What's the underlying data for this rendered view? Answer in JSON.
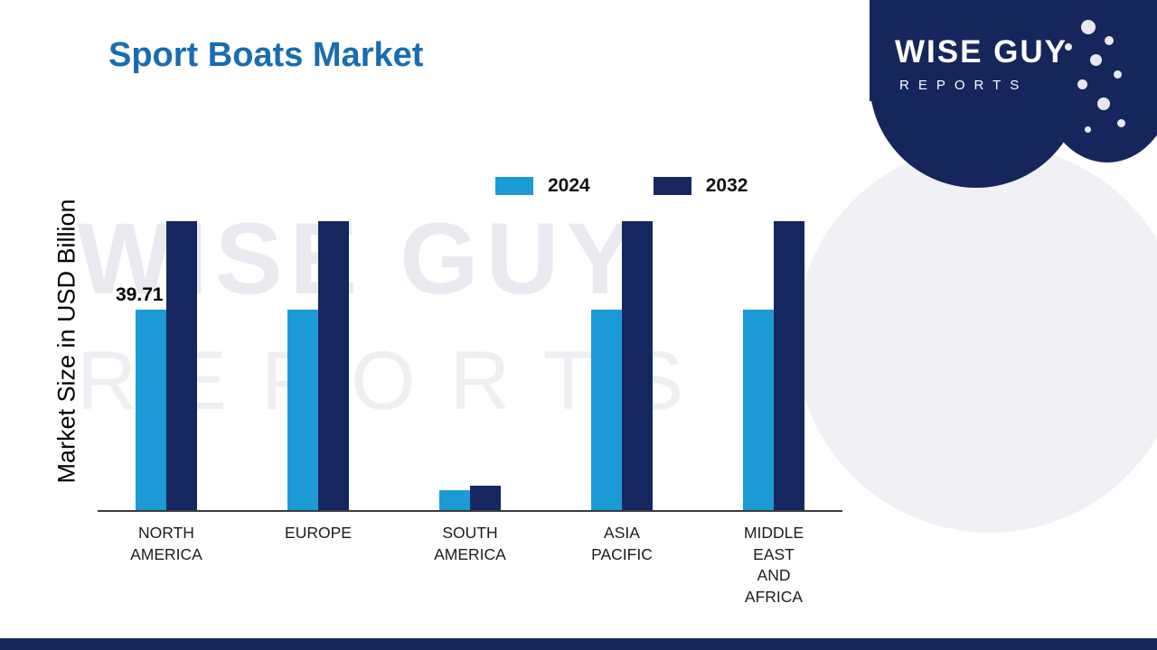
{
  "page": {
    "title": "Sport Boats Market"
  },
  "logo": {
    "line1": "WISE GUY",
    "line2": "REPORTS",
    "bg_color": "#14265b"
  },
  "watermark": {
    "line1": "WISE GUY",
    "line2": "REPORTS"
  },
  "colors": {
    "accent_2024": "#1c9ad6",
    "accent_2032": "#15275e",
    "title": "#1a6cb0",
    "footer": "#14265b"
  },
  "chart_data": {
    "type": "bar",
    "title": "Sport Boats Market",
    "xlabel": "",
    "ylabel": "Market Size in USD Billion",
    "ylim": [
      0,
      60
    ],
    "grid": false,
    "legend_position": "top",
    "categories": [
      "NORTH\nAMERICA",
      "EUROPE",
      "SOUTH\nAMERICA",
      "ASIA\nPACIFIC",
      "MIDDLE\nEAST\nAND\nAFRICA"
    ],
    "series": [
      {
        "name": "2024",
        "color": "#1c9ad6",
        "values": [
          39.71,
          39.7,
          4.0,
          39.7,
          39.7
        ]
      },
      {
        "name": "2032",
        "color": "#15275e",
        "values": [
          57.4,
          57.4,
          4.9,
          57.4,
          57.4
        ]
      }
    ],
    "annotations": [
      {
        "text": "39.71",
        "series": "2024",
        "category_index": 0
      }
    ]
  }
}
